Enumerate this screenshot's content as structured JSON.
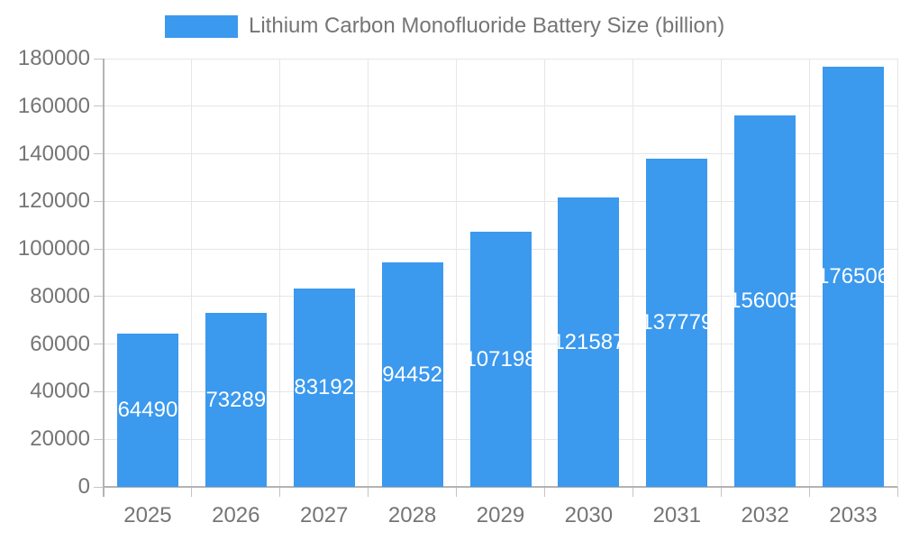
{
  "chart_data": {
    "type": "bar",
    "title": "Lithium Carbon Monofluoride Battery Size (billion)",
    "categories": [
      "2025",
      "2026",
      "2027",
      "2028",
      "2029",
      "2030",
      "2031",
      "2032",
      "2033"
    ],
    "series": [
      {
        "name": "Lithium Carbon Monofluoride Battery Size (billion)",
        "values": [
          64490,
          73289,
          83192,
          94452,
          107198,
          121587,
          137779,
          156005,
          176506
        ]
      }
    ],
    "bar_value_labels": [
      "64490",
      "73289",
      "83192",
      "94452",
      "107198",
      "121587",
      "137779",
      "156005",
      "176506"
    ],
    "xlabel": "",
    "ylabel": "",
    "ylim": [
      0,
      180000
    ],
    "ytick_step": 20000,
    "y_tick_labels": [
      "0",
      "20000",
      "40000",
      "60000",
      "80000",
      "100000",
      "120000",
      "140000",
      "160000",
      "180000"
    ],
    "grid": true,
    "legend_position": "top",
    "colors": {
      "bar": "#3b99ee",
      "bar_label": "#ffffff",
      "axis_text": "#757575",
      "grid_line": "#e6e6e6",
      "axis_line": "#b3b3b3",
      "tick_line": "#c4c4c4",
      "background": "#ffffff"
    }
  }
}
